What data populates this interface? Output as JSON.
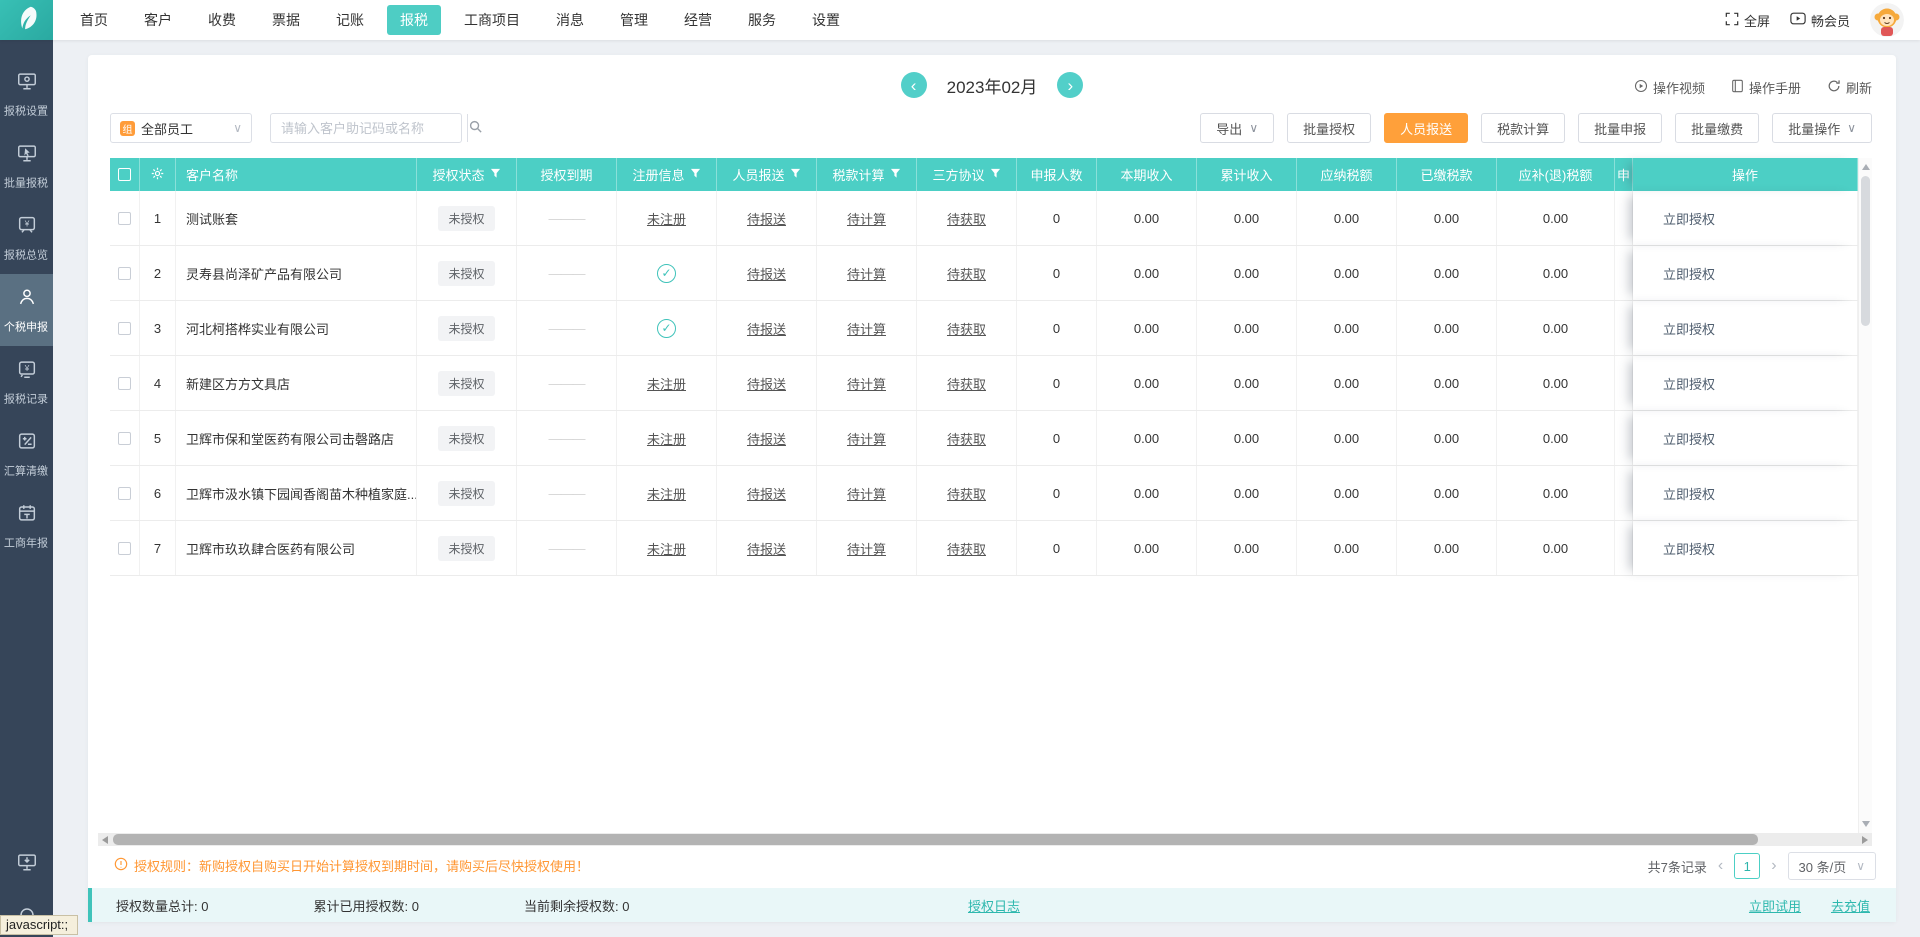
{
  "navbar": {
    "items": [
      {
        "label": "首页"
      },
      {
        "label": "客户"
      },
      {
        "label": "收费"
      },
      {
        "label": "票据"
      },
      {
        "label": "记账"
      },
      {
        "label": "报税",
        "active": true
      },
      {
        "label": "工商项目"
      },
      {
        "label": "消息"
      },
      {
        "label": "管理"
      },
      {
        "label": "经营"
      },
      {
        "label": "服务"
      },
      {
        "label": "设置"
      }
    ],
    "fullscreen": "全屏",
    "member": "畅会员"
  },
  "sidebar": {
    "items": [
      {
        "label": "报税设置",
        "icon": "monitor-gear-icon"
      },
      {
        "label": "批量报税",
        "icon": "monitor-cursor-icon"
      },
      {
        "label": "报税总览",
        "icon": "tax-overview-icon"
      },
      {
        "label": "个税申报",
        "icon": "person-tax-icon",
        "active": true
      },
      {
        "label": "报税记录",
        "icon": "tax-record-icon"
      },
      {
        "label": "汇算清缴",
        "icon": "settle-icon"
      },
      {
        "label": "工商年报",
        "icon": "annual-report-icon"
      }
    ]
  },
  "status_tooltip": "javascript:;",
  "period": {
    "label": "2023年02月"
  },
  "help": {
    "video": "操作视频",
    "manual": "操作手册",
    "refresh": "刷新"
  },
  "filters": {
    "employee": "全部员工",
    "group_icon_text": "组",
    "search_placeholder": "请输入客户助记码或名称"
  },
  "toolbar": {
    "buttons": [
      {
        "label": "导出",
        "dropdown": true
      },
      {
        "label": "批量授权"
      },
      {
        "label": "人员报送",
        "primary": true
      },
      {
        "label": "税款计算"
      },
      {
        "label": "批量申报"
      },
      {
        "label": "批量缴费"
      },
      {
        "label": "批量操作",
        "dropdown": true
      }
    ]
  },
  "table": {
    "columns": [
      {
        "label": "客户名称"
      },
      {
        "label": "授权状态",
        "filter": true
      },
      {
        "label": "授权到期"
      },
      {
        "label": "注册信息",
        "filter": true
      },
      {
        "label": "人员报送",
        "filter": true
      },
      {
        "label": "税款计算",
        "filter": true
      },
      {
        "label": "三方协议",
        "filter": true
      },
      {
        "label": "申报人数"
      },
      {
        "label": "本期收入"
      },
      {
        "label": "累计收入"
      },
      {
        "label": "应纳税额"
      },
      {
        "label": "已缴税款"
      },
      {
        "label": "应补(退)税额"
      },
      {
        "label": "申"
      },
      {
        "label": "操作"
      }
    ],
    "rows": [
      {
        "index": "1",
        "name": "测试账套",
        "auth_status": "未授权",
        "auth_expire": "———",
        "registered": false,
        "register": "未注册",
        "personnel": "待报送",
        "tax_calc": "待计算",
        "tri_agreement": "待获取",
        "declare_count": "0",
        "current_income": "0.00",
        "total_income": "0.00",
        "tax_payable": "0.00",
        "tax_paid": "0.00",
        "tax_refund": "0.00",
        "action": "立即授权"
      },
      {
        "index": "2",
        "name": "灵寿县尚泽矿产品有限公司",
        "auth_status": "未授权",
        "auth_expire": "———",
        "registered": true,
        "register": "",
        "personnel": "待报送",
        "tax_calc": "待计算",
        "tri_agreement": "待获取",
        "declare_count": "0",
        "current_income": "0.00",
        "total_income": "0.00",
        "tax_payable": "0.00",
        "tax_paid": "0.00",
        "tax_refund": "0.00",
        "action": "立即授权"
      },
      {
        "index": "3",
        "name": "河北柯搭桦实业有限公司",
        "auth_status": "未授权",
        "auth_expire": "———",
        "registered": true,
        "register": "",
        "personnel": "待报送",
        "tax_calc": "待计算",
        "tri_agreement": "待获取",
        "declare_count": "0",
        "current_income": "0.00",
        "total_income": "0.00",
        "tax_payable": "0.00",
        "tax_paid": "0.00",
        "tax_refund": "0.00",
        "action": "立即授权"
      },
      {
        "index": "4",
        "name": "新建区方方文具店",
        "auth_status": "未授权",
        "auth_expire": "———",
        "registered": false,
        "register": "未注册",
        "personnel": "待报送",
        "tax_calc": "待计算",
        "tri_agreement": "待获取",
        "declare_count": "0",
        "current_income": "0.00",
        "total_income": "0.00",
        "tax_payable": "0.00",
        "tax_paid": "0.00",
        "tax_refund": "0.00",
        "action": "立即授权"
      },
      {
        "index": "5",
        "name": "卫辉市保和堂医药有限公司击磬路店",
        "auth_status": "未授权",
        "auth_expire": "———",
        "registered": false,
        "register": "未注册",
        "personnel": "待报送",
        "tax_calc": "待计算",
        "tri_agreement": "待获取",
        "declare_count": "0",
        "current_income": "0.00",
        "total_income": "0.00",
        "tax_payable": "0.00",
        "tax_paid": "0.00",
        "tax_refund": "0.00",
        "action": "立即授权"
      },
      {
        "index": "6",
        "name": "卫辉市汲水镇下园闻香阁苗木种植家庭...",
        "auth_status": "未授权",
        "auth_expire": "———",
        "registered": false,
        "register": "未注册",
        "personnel": "待报送",
        "tax_calc": "待计算",
        "tri_agreement": "待获取",
        "declare_count": "0",
        "current_income": "0.00",
        "total_income": "0.00",
        "tax_payable": "0.00",
        "tax_paid": "0.00",
        "tax_refund": "0.00",
        "action": "立即授权"
      },
      {
        "index": "7",
        "name": "卫辉市玖玖肆合医药有限公司",
        "auth_status": "未授权",
        "auth_expire": "———",
        "registered": false,
        "register": "未注册",
        "personnel": "待报送",
        "tax_calc": "待计算",
        "tri_agreement": "待获取",
        "declare_count": "0",
        "current_income": "0.00",
        "total_income": "0.00",
        "tax_payable": "0.00",
        "tax_paid": "0.00",
        "tax_refund": "0.00",
        "action": "立即授权"
      }
    ]
  },
  "warning": {
    "text": "授权规则：新购授权自购买日开始计算授权到期时间，请购买后尽快授权使用！"
  },
  "pagination": {
    "total": "共7条记录",
    "page": "1",
    "page_size": "30 条/页"
  },
  "footer": {
    "stats": [
      {
        "label": "授权数量总计:",
        "value": "0"
      },
      {
        "label": "累计已用授权数:",
        "value": "0"
      },
      {
        "label": "当前剩余授权数:",
        "value": "0"
      }
    ],
    "log_link": "授权日志",
    "try_link": "立即试用",
    "recharge_link": "去充值"
  }
}
